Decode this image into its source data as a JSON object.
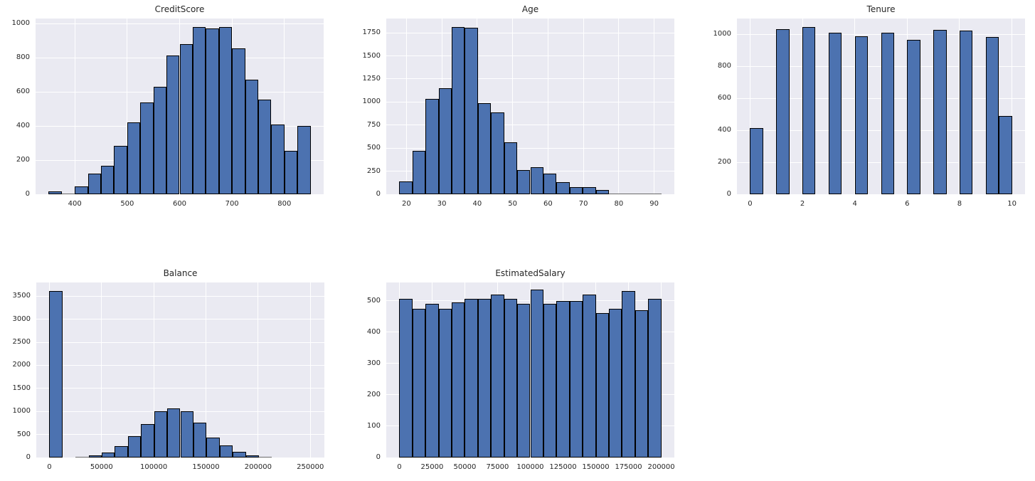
{
  "figure": {
    "background": "#ffffff",
    "plot_background": "#eaeaf2",
    "grid_color": "#ffffff",
    "bar_fill": "#4c72b0",
    "bar_edge": "#000000",
    "text_color": "#262626",
    "grid_layout": "2 rows x 3 columns, last cell empty"
  },
  "chart_data": [
    {
      "type": "bar",
      "subtype": "histogram",
      "title": "CreditScore",
      "xlabel": "",
      "ylabel": "",
      "grid": true,
      "bin_start": 350,
      "bin_width": 25,
      "values": [
        15,
        5,
        45,
        120,
        165,
        285,
        420,
        540,
        630,
        815,
        880,
        980,
        970,
        980,
        855,
        670,
        555,
        410,
        255,
        400
      ],
      "xlim": [
        325,
        875
      ],
      "ylim": [
        0,
        1030
      ],
      "xticks": [
        400,
        500,
        600,
        700,
        800
      ],
      "xtick_labels": [
        "400",
        "500",
        "600",
        "700",
        "800"
      ],
      "yticks": [
        0,
        200,
        400,
        600,
        800,
        1000
      ],
      "ytick_labels": [
        "0",
        "200",
        "400",
        "600",
        "800",
        "1000"
      ]
    },
    {
      "type": "bar",
      "subtype": "histogram",
      "title": "Age",
      "xlabel": "",
      "ylabel": "",
      "grid": true,
      "bin_start": 18,
      "bin_width": 3.7,
      "values": [
        140,
        470,
        1030,
        1150,
        1815,
        1805,
        990,
        885,
        565,
        260,
        295,
        225,
        130,
        80,
        80,
        45,
        12,
        8,
        2,
        2
      ],
      "xlim": [
        14.3,
        95.7
      ],
      "ylim": [
        0,
        1905
      ],
      "xticks": [
        20,
        30,
        40,
        50,
        60,
        70,
        80,
        90
      ],
      "xtick_labels": [
        "20",
        "30",
        "40",
        "50",
        "60",
        "70",
        "80",
        "90"
      ],
      "yticks": [
        0,
        250,
        500,
        750,
        1000,
        1250,
        1500,
        1750
      ],
      "ytick_labels": [
        "0",
        "250",
        "500",
        "750",
        "1000",
        "1250",
        "1500",
        "1750"
      ]
    },
    {
      "type": "bar",
      "subtype": "histogram",
      "title": "Tenure",
      "xlabel": "",
      "ylabel": "",
      "grid": true,
      "bin_start": 0,
      "bin_width": 0.5,
      "values": [
        413,
        0,
        1035,
        0,
        1048,
        0,
        1009,
        0,
        989,
        0,
        1012,
        0,
        967,
        0,
        1028,
        0,
        1025,
        0,
        984,
        490
      ],
      "xlim": [
        -0.5,
        10.5
      ],
      "ylim": [
        0,
        1100
      ],
      "xticks": [
        0,
        2,
        4,
        6,
        8,
        10
      ],
      "xtick_labels": [
        "0",
        "2",
        "4",
        "6",
        "8",
        "10"
      ],
      "yticks": [
        0,
        200,
        400,
        600,
        800,
        1000
      ],
      "ytick_labels": [
        "0",
        "200",
        "400",
        "600",
        "800",
        "1000"
      ]
    },
    {
      "type": "bar",
      "subtype": "histogram",
      "title": "Balance",
      "xlabel": "",
      "ylabel": "",
      "grid": true,
      "bin_start": 0,
      "bin_width": 12545,
      "values": [
        3617,
        0,
        15,
        50,
        115,
        245,
        460,
        720,
        1000,
        1070,
        1000,
        750,
        440,
        265,
        130,
        40,
        25,
        0,
        0,
        0
      ],
      "xlim": [
        -12545,
        263443
      ],
      "ylim": [
        0,
        3798
      ],
      "xticks": [
        0,
        50000,
        100000,
        150000,
        200000,
        250000
      ],
      "xtick_labels": [
        "0",
        "50000",
        "100000",
        "150000",
        "200000",
        "250000"
      ],
      "yticks": [
        0,
        500,
        1000,
        1500,
        2000,
        2500,
        3000,
        3500
      ],
      "ytick_labels": [
        "0",
        "500",
        "1000",
        "1500",
        "2000",
        "2500",
        "3000",
        "3500"
      ]
    },
    {
      "type": "bar",
      "subtype": "histogram",
      "title": "EstimatedSalary",
      "xlabel": "",
      "ylabel": "",
      "grid": true,
      "bin_start": 10,
      "bin_width": 10000,
      "values": [
        505,
        475,
        490,
        475,
        495,
        505,
        505,
        520,
        505,
        490,
        535,
        490,
        500,
        500,
        520,
        460,
        475,
        530,
        470,
        505
      ],
      "xlim": [
        -9990,
        210010
      ],
      "ylim": [
        0,
        558
      ],
      "xticks": [
        0,
        25000,
        50000,
        75000,
        100000,
        125000,
        150000,
        175000,
        200000
      ],
      "xtick_labels": [
        "0",
        "25000",
        "50000",
        "75000",
        "100000",
        "125000",
        "150000",
        "175000",
        "200000"
      ],
      "yticks": [
        0,
        100,
        200,
        300,
        400,
        500
      ],
      "ytick_labels": [
        "0",
        "100",
        "200",
        "300",
        "400",
        "500"
      ]
    }
  ]
}
